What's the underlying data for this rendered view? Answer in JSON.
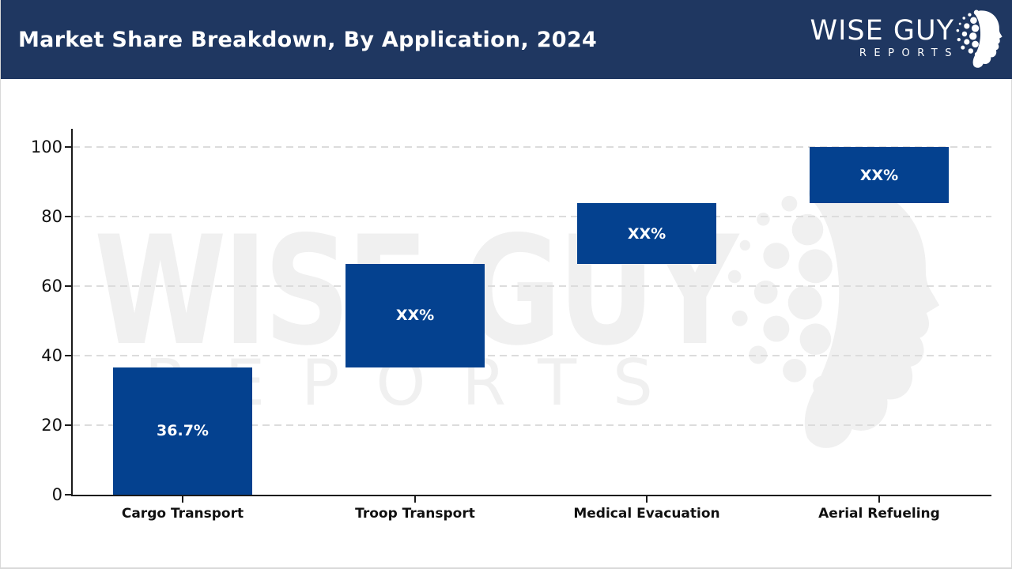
{
  "header": {
    "title": "Market Share Breakdown, By Application, 2024",
    "logo": {
      "line1": "WISE GUY",
      "line2": "REPORTS"
    }
  },
  "watermark": {
    "line1": "WISE GUY",
    "line2": "REPORTS"
  },
  "colors": {
    "header_bg": "#1f3761",
    "bar": "#04418f",
    "watermark": "#f0f0f0",
    "grid": "#dcdcdc",
    "axis": "#1a1a1a",
    "title_text": "#ffffff",
    "bar_label_text": "#ffffff"
  },
  "chart_data": {
    "type": "bar",
    "subtype": "waterfall",
    "title": "Market Share Breakdown, By Application, 2024",
    "xlabel": "",
    "ylabel": "",
    "categories": [
      "Cargo Transport",
      "Troop Transport",
      "Medical Evacuation",
      "Aerial Refueling"
    ],
    "segments": [
      {
        "category": "Cargo Transport",
        "start": 0,
        "end": 36.7,
        "value": 36.7,
        "label": "36.7%"
      },
      {
        "category": "Troop Transport",
        "start": 36.7,
        "end": 66.3,
        "value": 29.6,
        "label": "XX%"
      },
      {
        "category": "Medical Evacuation",
        "start": 66.3,
        "end": 83.8,
        "value": 17.5,
        "label": "XX%"
      },
      {
        "category": "Aerial Refueling",
        "start": 83.8,
        "end": 100,
        "value": 16.2,
        "label": "XX%"
      }
    ],
    "y_ticks": [
      0,
      20,
      40,
      60,
      80,
      100
    ],
    "ylim": [
      0,
      105
    ],
    "grid": "horizontal dashed",
    "legend": "none"
  }
}
